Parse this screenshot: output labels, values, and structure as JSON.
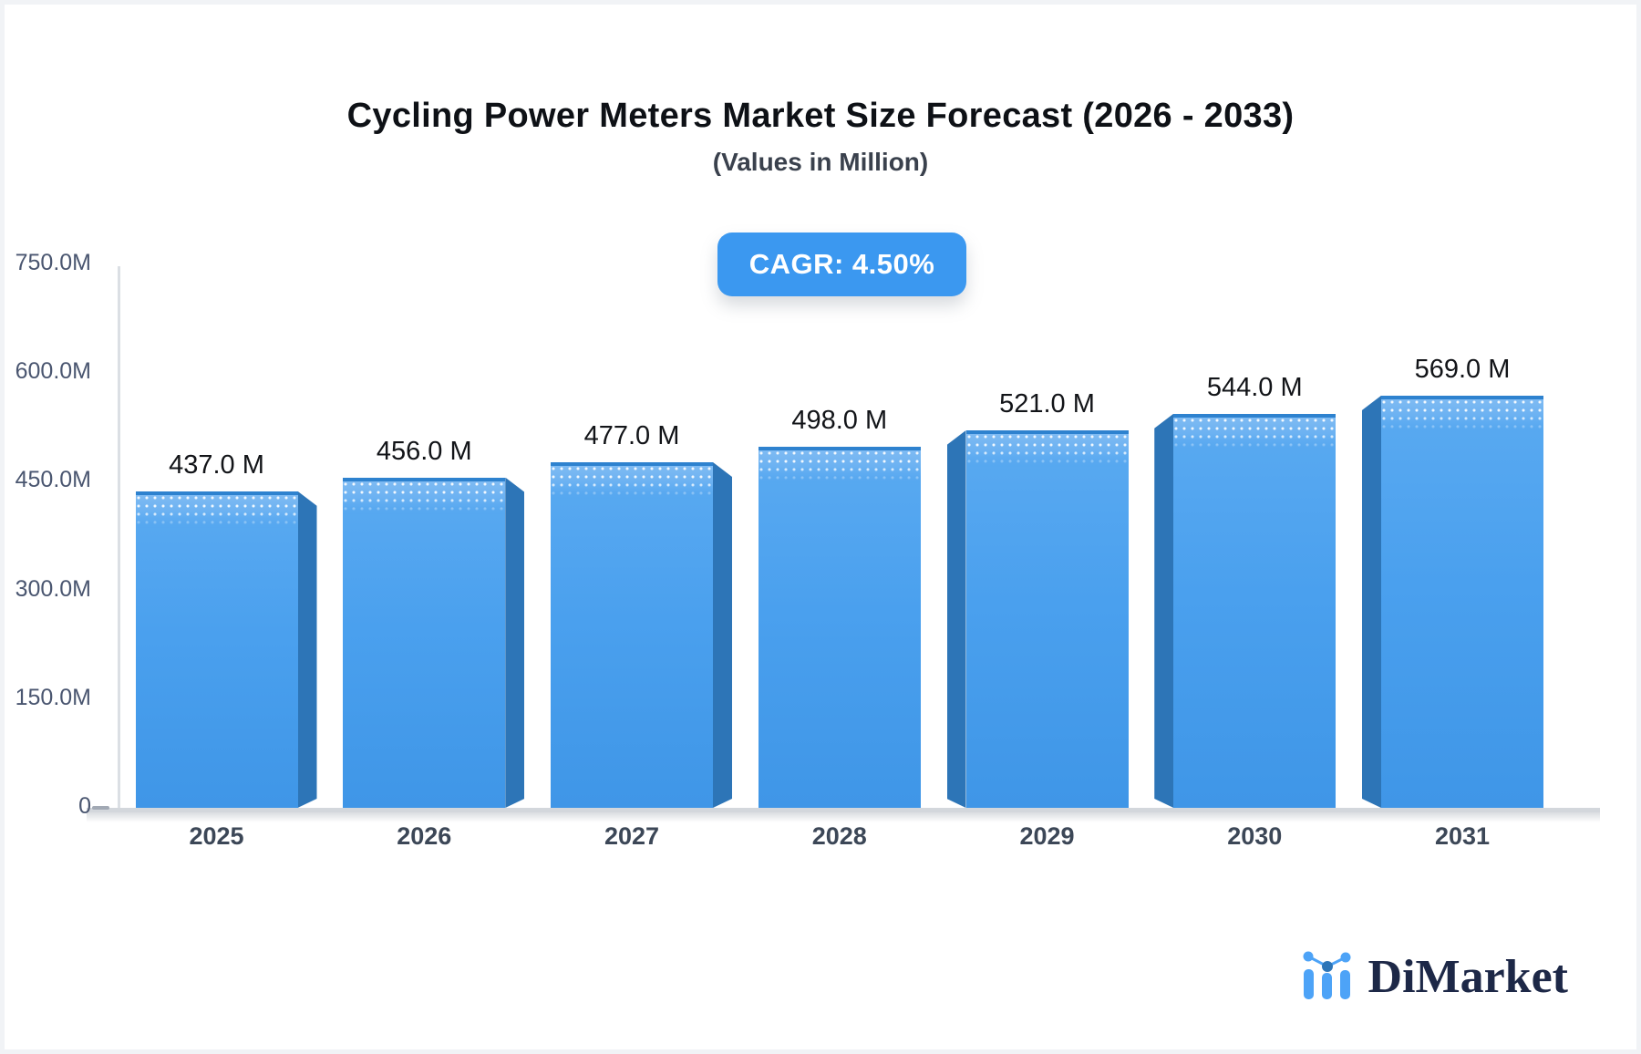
{
  "header": {
    "title": "Cycling Power Meters Market Size Forecast (2026 - 2033)",
    "subtitle": "(Values in Million)"
  },
  "badge": {
    "label": "CAGR: 4.50%"
  },
  "chart_data": {
    "type": "bar",
    "title": "Cycling Power Meters Market Size Forecast (2026 - 2033)",
    "subtitle": "(Values in Million)",
    "cagr_percent": 4.5,
    "unit": "Million",
    "categories": [
      "2025",
      "2026",
      "2027",
      "2028",
      "2029",
      "2030",
      "2031"
    ],
    "series": [
      {
        "name": "Market Size",
        "values": [
          437,
          456,
          477,
          498,
          521,
          544,
          569
        ]
      }
    ],
    "value_labels": [
      "437.0 M",
      "456.0 M",
      "477.0 M",
      "498.0 M",
      "521.0 M",
      "544.0 M",
      "569.0 M"
    ],
    "y_ticks": [
      {
        "value": 750,
        "label": "750.0M"
      },
      {
        "value": 600,
        "label": "600.0M"
      },
      {
        "value": 450,
        "label": "450.0M"
      },
      {
        "value": 300,
        "label": "300.0M"
      },
      {
        "value": 150,
        "label": "150.0M"
      },
      {
        "value": 0,
        "label": "0"
      }
    ],
    "ylim": [
      0,
      750
    ],
    "grid": false,
    "legend": false,
    "bar_style": "3d-column"
  },
  "colors": {
    "accent": "#3b98f0",
    "bar_front": "#4aa0ee",
    "bar_side": "#2d75b7",
    "bar_edge": "#2e82cf",
    "logo_blue": "#4da3f7",
    "navy": "#1d2847"
  },
  "footer": {
    "brand": "DiMarket",
    "logo_icon": "mini-bar-line-chart-icon"
  }
}
